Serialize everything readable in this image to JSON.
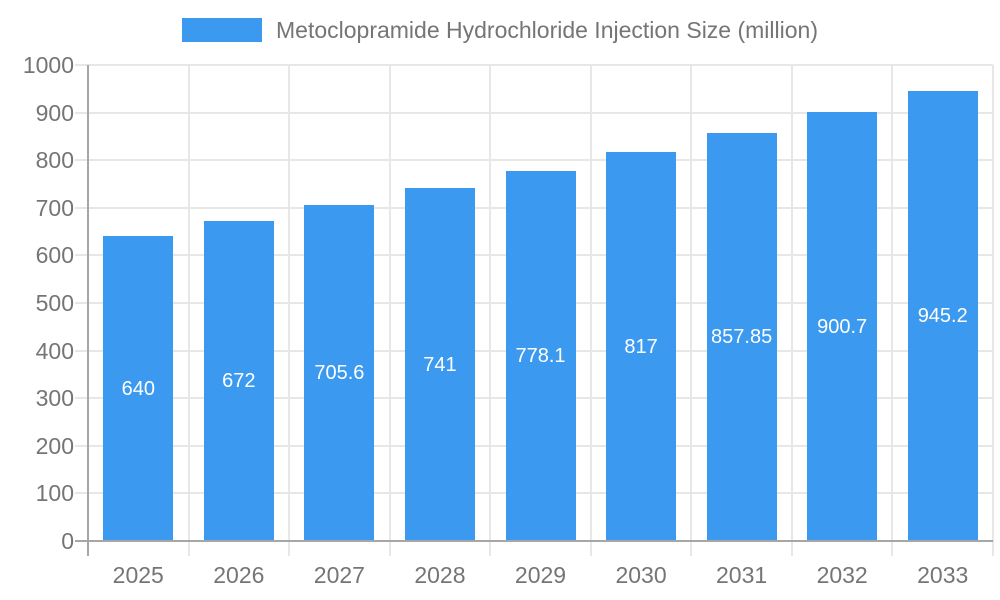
{
  "chart_data": {
    "type": "bar",
    "title": "Metoclopramide Hydrochloride Injection Size (million)",
    "legend_label": "Metoclopramide Hydrochloride Injection Size (million)",
    "legend_position": "top",
    "categories": [
      "2025",
      "2026",
      "2027",
      "2028",
      "2029",
      "2030",
      "2031",
      "2032",
      "2033"
    ],
    "values": [
      640,
      672,
      705.6,
      741,
      778.1,
      817,
      857.85,
      900.7,
      945.2
    ],
    "value_labels": [
      "640",
      "672",
      "705.6",
      "741",
      "778.1",
      "817",
      "857.85",
      "900.7",
      "945.2"
    ],
    "xlabel": "",
    "ylabel": "",
    "ylim": [
      0,
      1000
    ],
    "yticks": [
      0,
      100,
      200,
      300,
      400,
      500,
      600,
      700,
      800,
      900,
      1000
    ],
    "grid": true,
    "colors": {
      "bar": "#3b99ef",
      "grid": "#e7e7e7",
      "axis": "#a6a6a6",
      "tick_text": "#757575",
      "bar_label_text": "#ffffff",
      "background": "#ffffff"
    }
  }
}
